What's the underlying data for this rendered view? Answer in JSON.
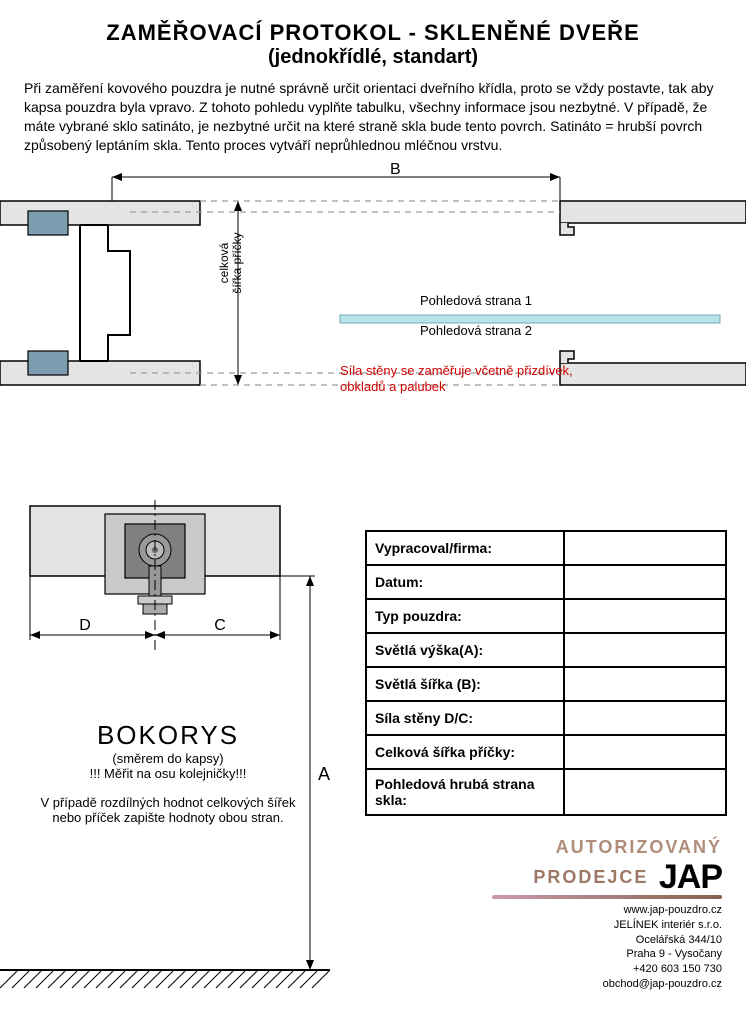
{
  "header": {
    "title": "ZAMĚŘOVACÍ PROTOKOL - SKLENĚNÉ DVEŘE",
    "subtitle": "(jednokřídlé, standart)"
  },
  "intro_text": "Při zaměření kovového pouzdra je nutné správně určit orientaci dveřního křídla, proto se vždy postavte, tak aby kapsa pouzdra byla vpravo. Z tohoto pohledu vyplňte tabulku, všechny informace jsou nezbytné. V případě, že máte vybrané sklo satináto, je nezbytné určit na které straně skla bude tento povrch. Satináto = hrubší povrch způsobený leptáním skla. Tento proces vytváří neprůhlednou mléčnou vrstvu.",
  "top_diagram": {
    "dim_b_label": "B",
    "vertical_axis_label": "celková\nšířka příčky",
    "pohledova1": "Pohledová strana 1",
    "pohledova2": "Pohledová strana 2",
    "red_note": "Síla stěny se zaměřuje včetně přizdívek, obkladů a palubek",
    "glass_color": "#b8e3e8",
    "wall_fill": "#e4e4e4",
    "profile_fill": "#7d9eb0",
    "outline": "#000000",
    "dash_color": "#9a9a9a"
  },
  "side_diagram": {
    "dim_a_label": "A",
    "dim_c_label": "C",
    "dim_d_label": "D",
    "track_fill": "#808080",
    "roller_fill": "#999999",
    "housing_fill": "#e4e4e4"
  },
  "bokorys": {
    "title": "BOKORYS",
    "sub": "(směrem do kapsy)",
    "warn": "!!! Měřit na osu kolejničky!!!",
    "note": "V případě rozdílných hodnot celkových šířek nebo příček zapište hodnoty obou stran."
  },
  "form": {
    "rows": [
      {
        "label": "Vypracoval/firma:",
        "value": ""
      },
      {
        "label": "Datum:",
        "value": ""
      },
      {
        "label": "Typ pouzdra:",
        "value": ""
      },
      {
        "label": "Světlá výška(A):",
        "value": ""
      },
      {
        "label": "Světlá šířka (B):",
        "value": ""
      },
      {
        "label": "Síla stěny D/C:",
        "value": ""
      },
      {
        "label": "Celková šířka příčky:",
        "value": ""
      },
      {
        "label": "Pohledová hrubá strana skla:",
        "value": ""
      }
    ]
  },
  "footer": {
    "auth1": "AUTORIZOVANÝ",
    "auth2": "PRODEJCE",
    "logo": "JAP",
    "contact": [
      "www.jap-pouzdro.cz",
      "JELÍNEK interiér s.r.o.",
      "Ocelářská 344/10",
      "Praha 9 - Vysočany",
      "+420 603 150 730",
      "obchod@jap-pouzdro.cz"
    ]
  }
}
